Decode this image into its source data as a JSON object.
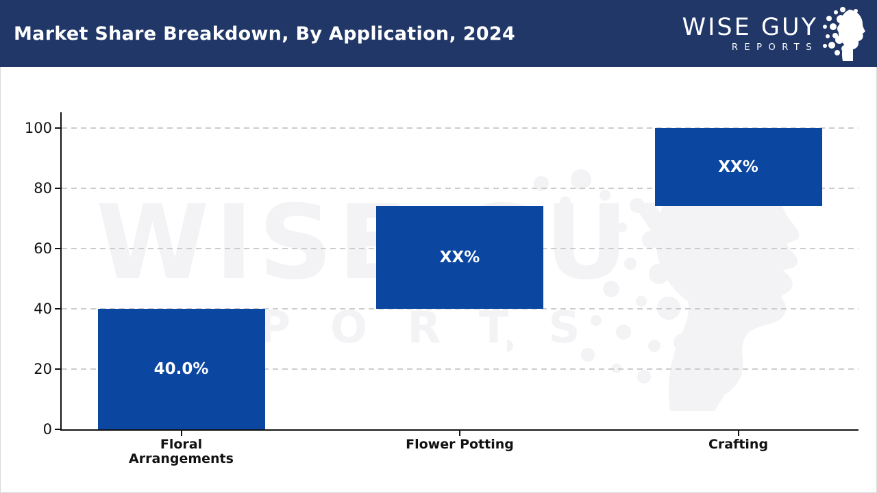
{
  "header": {
    "title": "Market Share Breakdown, By Application, 2024",
    "logo": {
      "line1": "WISE GUY",
      "line2": "REPORTS"
    }
  },
  "watermark": {
    "line1": "WISE GUY",
    "line2": "REPORTS"
  },
  "chart_data": {
    "type": "bar",
    "subtype": "waterfall",
    "title": "Market Share Breakdown, By Application, 2024",
    "categories": [
      "Floral Arrangements",
      "Flower Potting",
      "Crafting"
    ],
    "segments": [
      {
        "category": "Floral Arrangements",
        "start": 0,
        "end": 40,
        "value_label": "40.0%"
      },
      {
        "category": "Flower Potting",
        "start": 40,
        "end": 74,
        "value_label": "XX%"
      },
      {
        "category": "Crafting",
        "start": 74,
        "end": 100,
        "value_label": "XX%"
      }
    ],
    "ylim": [
      0,
      100
    ],
    "yticks": [
      0,
      20,
      40,
      60,
      80,
      100
    ],
    "grid": {
      "axis": "y",
      "style": "dashed"
    },
    "legend": "none",
    "colors": {
      "bar": "#0B46A1",
      "value_label": "#FFFFFF",
      "axis": "#111111",
      "gridline": "#CCCCCC",
      "header_bg": "#203768",
      "watermark": "#F3F3F5"
    }
  }
}
